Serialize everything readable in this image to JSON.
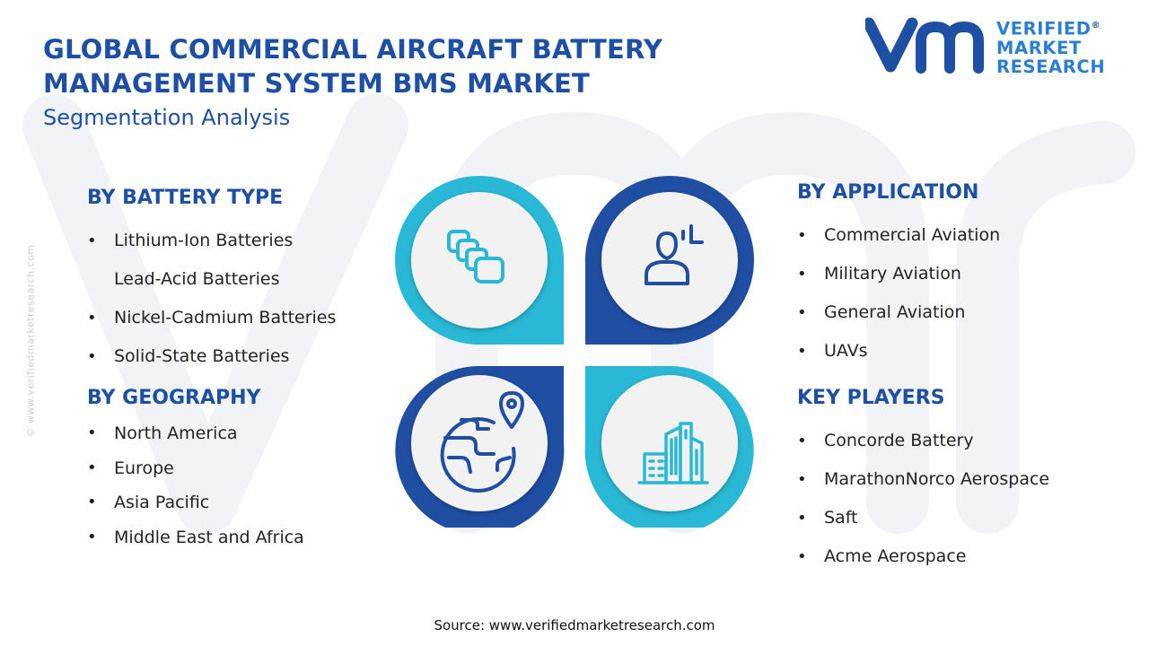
{
  "header": {
    "title": "GLOBAL COMMERCIAL AIRCRAFT BATTERY MANAGEMENT SYSTEM BMS MARKET",
    "subtitle": "Segmentation Analysis"
  },
  "logo": {
    "line1": "VERIFIED",
    "line2": "MARKET",
    "line3": "RESEARCH",
    "registered_mark": "®"
  },
  "side_watermark": "© www.verifiedmarketresearch.com",
  "segments": {
    "battery_type": {
      "heading": "BY BATTERY TYPE",
      "items": [
        {
          "label": "Lithium-Ion Batteries",
          "bullet": true
        },
        {
          "label": "Lead-Acid Batteries",
          "bullet": false
        },
        {
          "label": "Nickel-Cadmium Batteries",
          "bullet": true
        },
        {
          "label": "Solid-State Batteries",
          "bullet": true
        }
      ]
    },
    "geography": {
      "heading": "BY GEOGRAPHY",
      "items": [
        {
          "label": "North America",
          "bullet": true
        },
        {
          "label": "Europe",
          "bullet": true
        },
        {
          "label": "Asia Pacific",
          "bullet": true
        },
        {
          "label": "Middle East and Africa",
          "bullet": true
        }
      ]
    },
    "application": {
      "heading": "BY APPLICATION",
      "items": [
        {
          "label": "Commercial Aviation",
          "bullet": true
        },
        {
          "label": "Military Aviation",
          "bullet": true
        },
        {
          "label": "General Aviation",
          "bullet": true
        },
        {
          "label": "UAVs",
          "bullet": true
        }
      ]
    },
    "key_players": {
      "heading": "KEY PLAYERS",
      "items": [
        {
          "label": "Concorde Battery",
          "bullet": true
        },
        {
          "label": "MarathonNorco Aerospace",
          "bullet": true
        },
        {
          "label": "Saft",
          "bullet": true
        },
        {
          "label": "Acme Aerospace",
          "bullet": true
        }
      ]
    }
  },
  "icons": {
    "top_left": "battery-cells-icon",
    "top_right": "user-analysis-icon",
    "bottom_left": "globe-location-icon",
    "bottom_right": "city-buildings-icon"
  },
  "colors": {
    "brand_blue": "#1d4fa5",
    "cyan": "#29b9d6",
    "navy": "#1f4ea3",
    "logo_blue": "#2a7fd4"
  },
  "source": "Source: www.verifiedmarketresearch.com"
}
